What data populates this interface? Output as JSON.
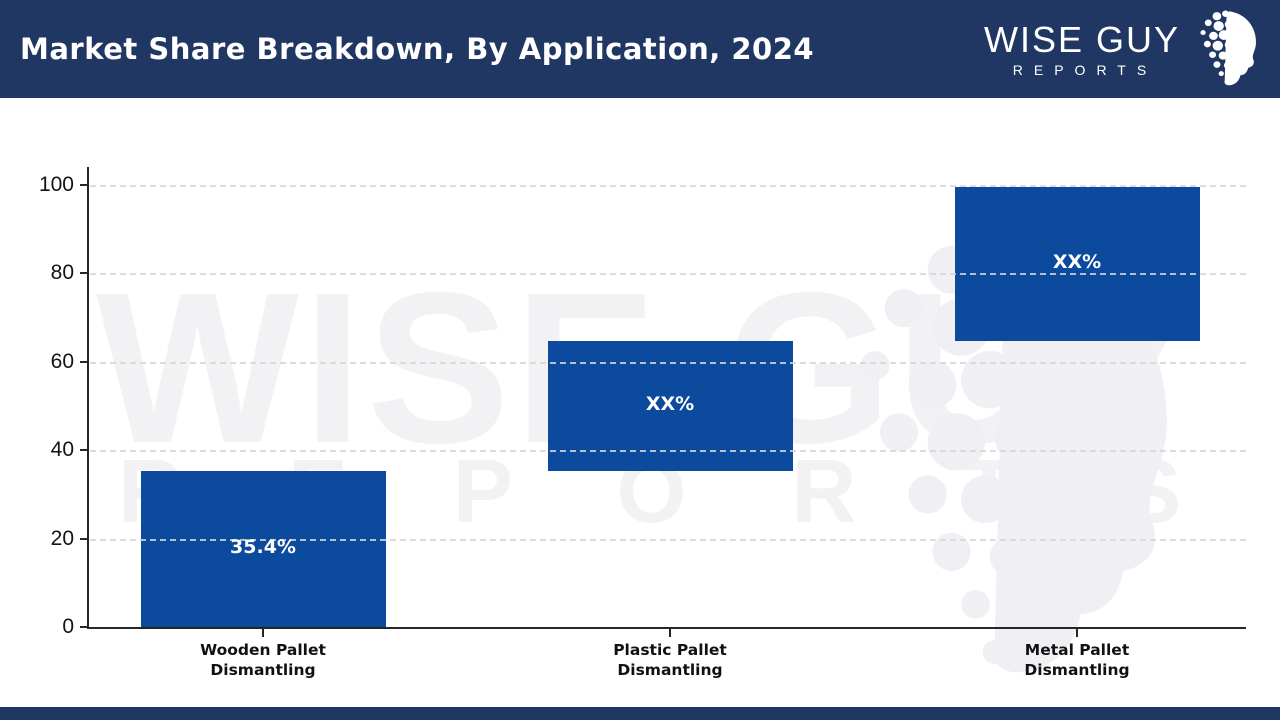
{
  "header": {
    "title": "Market Share Breakdown, By Application, 2024",
    "logo": {
      "line1": "WISE GUY",
      "line2": "REPORTS"
    }
  },
  "watermark": {
    "line1": "WISE GUY",
    "line2": "R E P O R T S"
  },
  "colors": {
    "header_bg": "#203764",
    "footer_bg": "#203764",
    "bar": "#0c4a9e",
    "bar_label": "#ffffff",
    "grid": "#d6d6d6",
    "axis": "#262626",
    "tick_label": "#141414",
    "watermark": "#f2f2f5"
  },
  "chart_data": {
    "type": "bar",
    "subtype": "floating-waterfall",
    "title": "Market Share Breakdown, By Application, 2024",
    "categories": [
      "Wooden Pallet Dismantling",
      "Plastic Pallet Dismantling",
      "Metal Pallet Dismantling"
    ],
    "category_lines": [
      [
        "Wooden Pallet",
        "Dismantling"
      ],
      [
        "Plastic Pallet",
        "Dismantling"
      ],
      [
        "Metal Pallet",
        "Dismantling"
      ]
    ],
    "bars": [
      {
        "category": "Wooden Pallet Dismantling",
        "start": 0,
        "end": 35.4,
        "label": "35.4%"
      },
      {
        "category": "Plastic Pallet Dismantling",
        "start": 35.4,
        "end": 64.8,
        "label": "XX%"
      },
      {
        "category": "Metal Pallet Dismantling",
        "start": 64.8,
        "end": 99.6,
        "label": "XX%"
      }
    ],
    "xlabel": "",
    "ylabel": "",
    "yticks": [
      0,
      20,
      40,
      60,
      80,
      100
    ],
    "ylim": [
      0,
      104
    ],
    "grid": "horizontal dashed",
    "legend": "none"
  }
}
